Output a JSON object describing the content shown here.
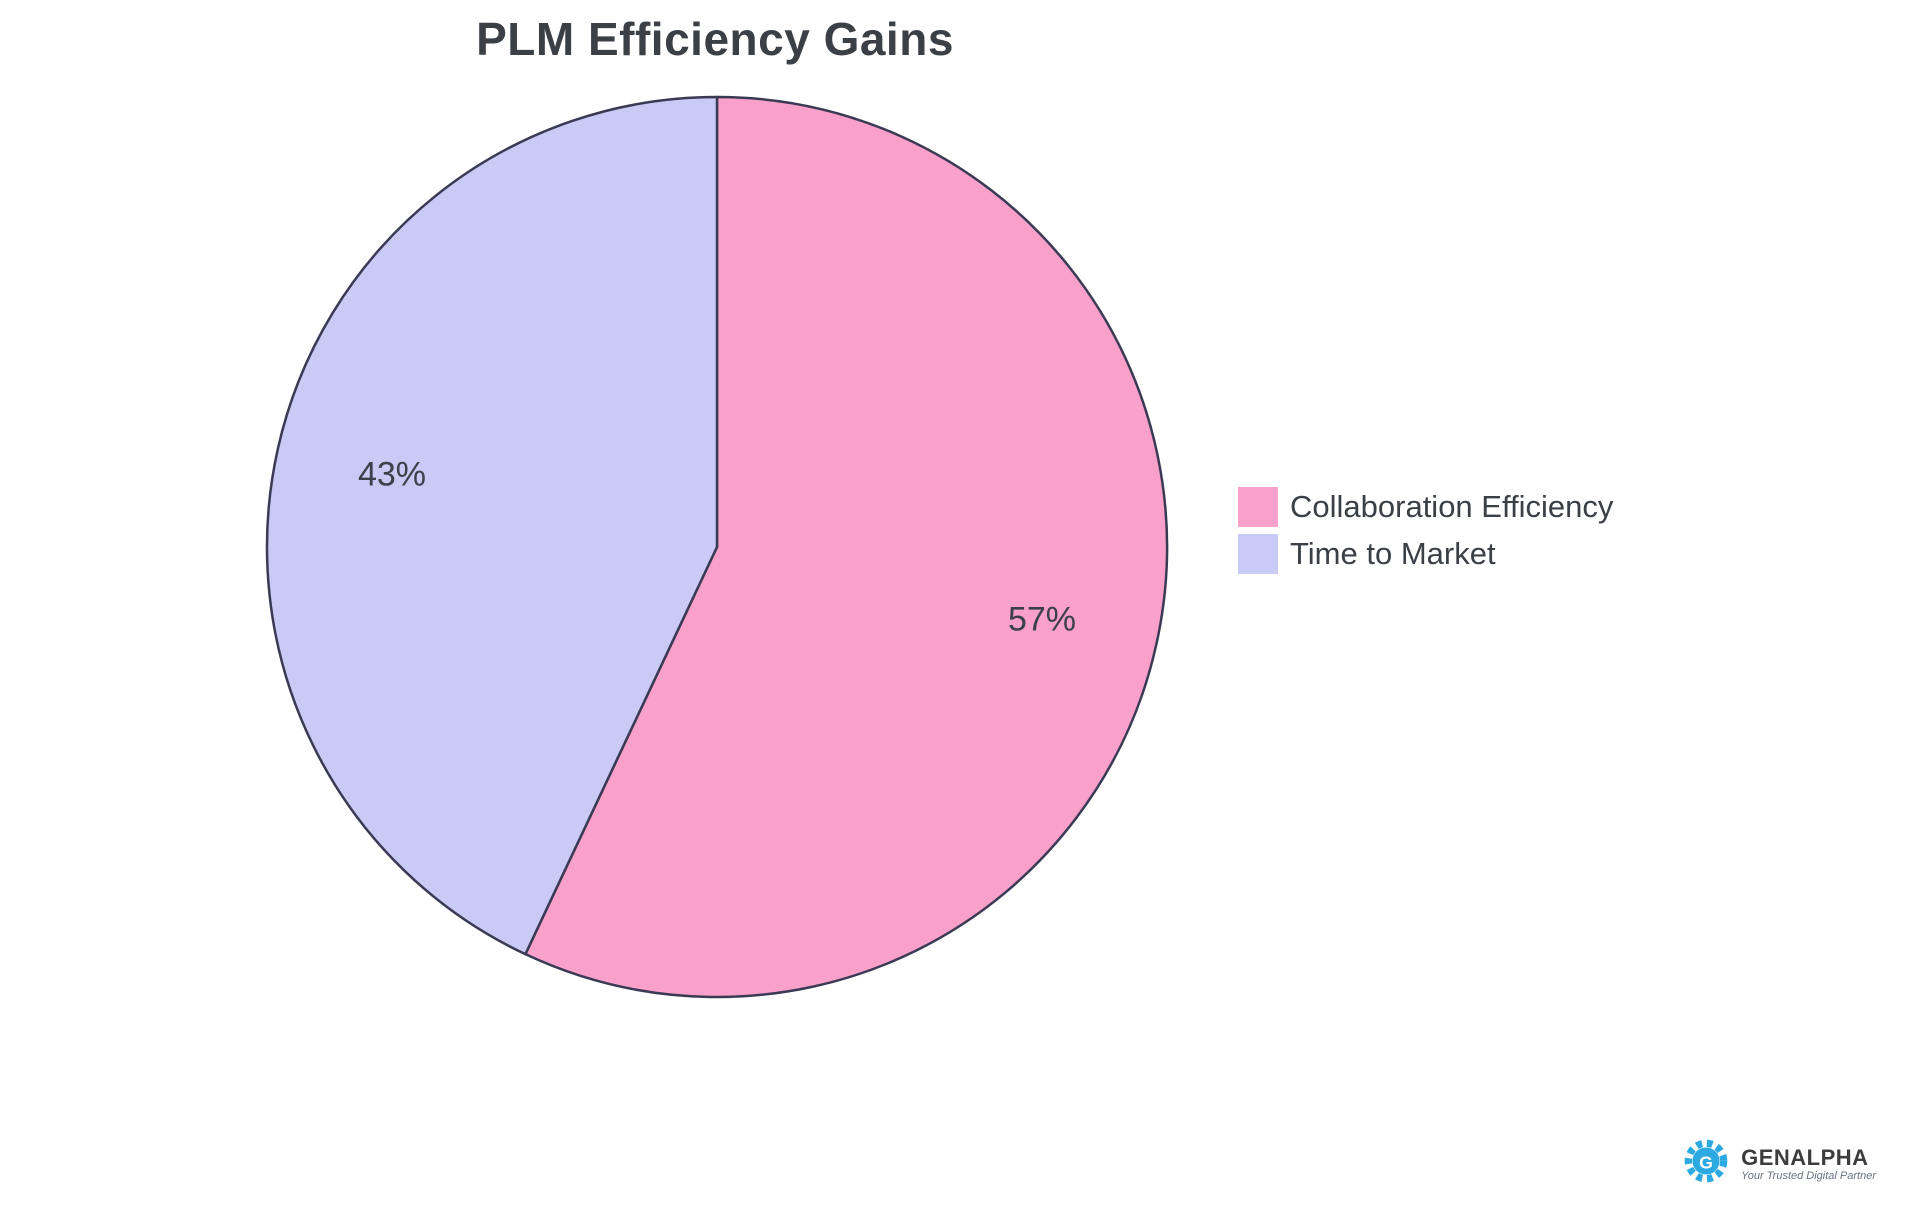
{
  "title": "PLM Efficiency Gains",
  "chart_data": {
    "type": "pie",
    "labels": [
      "Collaboration Efficiency",
      "Time to Market"
    ],
    "values": [
      57,
      43
    ],
    "display_labels": [
      "57%",
      "43%"
    ],
    "colors": [
      "#F9A0CB",
      "#C9CAF5"
    ],
    "stroke_color": "#3A3A55",
    "start_angle_deg": 0,
    "direction": "clockwise",
    "legend_position": "right",
    "background": "#FFFFFF"
  },
  "logo": {
    "name": "GENALPHA",
    "tagline": "Your Trusted Digital Partner",
    "accent_color": "#2BA9E0"
  }
}
